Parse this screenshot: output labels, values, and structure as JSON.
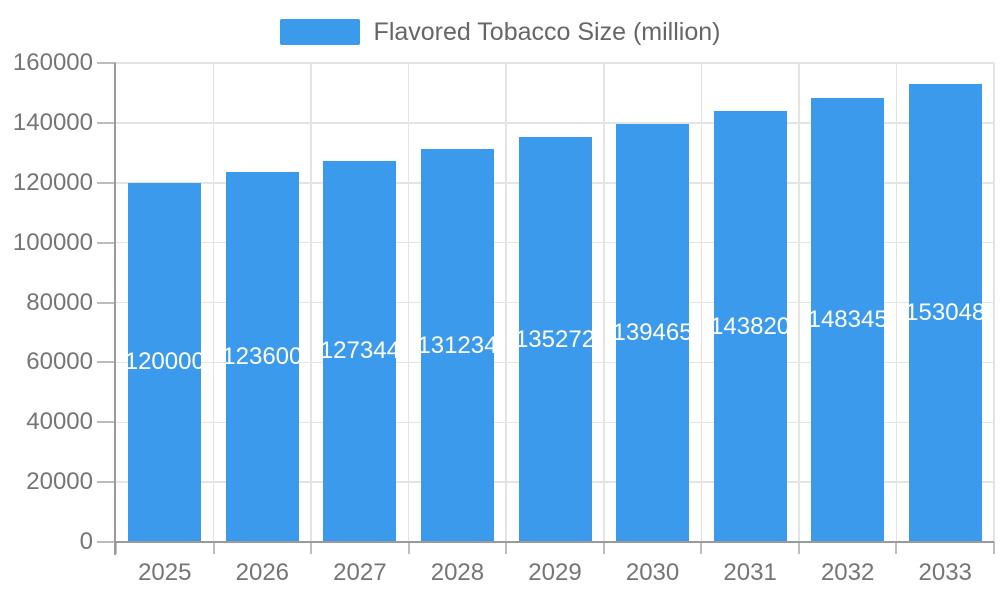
{
  "chart_data": {
    "type": "bar",
    "title": "Flavored Tobacco Size (million)",
    "legend": {
      "label": "Flavored Tobacco Size (million)",
      "position": "top-center",
      "marker": "rect"
    },
    "categories": [
      "2025",
      "2026",
      "2027",
      "2028",
      "2029",
      "2030",
      "2031",
      "2032",
      "2033"
    ],
    "series": [
      {
        "name": "Flavored Tobacco Size (million)",
        "values": [
          120000,
          123600,
          127344,
          131234,
          135272,
          139465,
          143820,
          148345,
          153048
        ]
      }
    ],
    "xlabel": "",
    "ylabel": "",
    "ylim": [
      0,
      160000
    ],
    "y_ticks": [
      0,
      20000,
      40000,
      60000,
      80000,
      100000,
      120000,
      140000,
      160000
    ],
    "grid": true,
    "bar_label_position": "inside-center",
    "colors": {
      "bar": "#3B9AEC",
      "bar_label": "#FFFFFF",
      "axis_line": "#9A9A9A",
      "grid_line": "#E4E4E4",
      "tick_mark": "#BDBDBD",
      "axis_text": "#757575",
      "legend_text": "#666666",
      "background": "#FFFFFF"
    }
  }
}
